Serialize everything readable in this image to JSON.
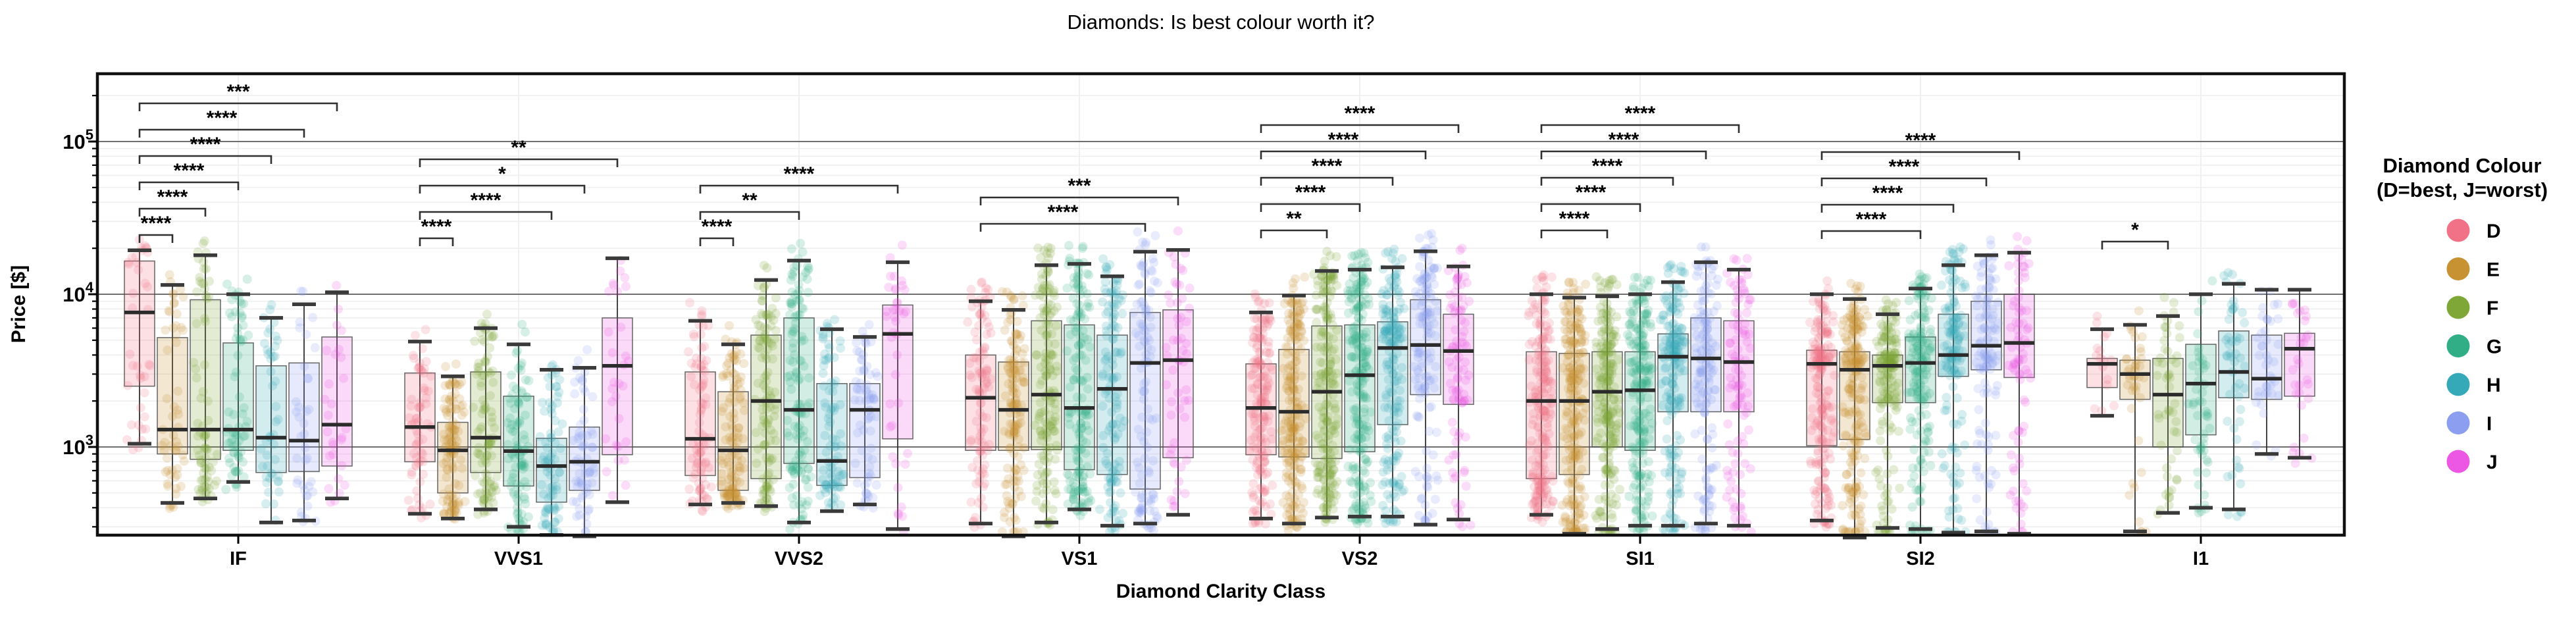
{
  "title": "Diamonds: Is best colour worth it?",
  "axes": {
    "x": {
      "label": "Diamond Clarity Class"
    },
    "y": {
      "label": "Price [$]",
      "scale": "log10",
      "tick_labels": [
        "10³",
        "10⁴",
        "10⁵"
      ],
      "tick_values": [
        1000,
        10000,
        100000
      ]
    }
  },
  "legend": {
    "title_line1": "Diamond Colour",
    "title_line2": "(D=best, J=worst)",
    "entries": [
      {
        "label": "D",
        "color": "#F17286"
      },
      {
        "label": "E",
        "color": "#C79232"
      },
      {
        "label": "F",
        "color": "#7FA737"
      },
      {
        "label": "G",
        "color": "#31AE86"
      },
      {
        "label": "H",
        "color": "#36A9B8"
      },
      {
        "label": "I",
        "color": "#8C9EF0"
      },
      {
        "label": "J",
        "color": "#EC57E3"
      }
    ]
  },
  "chart_data": {
    "type": "grouped_boxplot_with_jitter",
    "title": "Diamonds: Is best colour worth it?",
    "xlabel": "Diamond Clarity Class",
    "ylabel": "Price [$]",
    "yscale": "log10",
    "ylim": [
      260,
      330000
    ],
    "grid": true,
    "legend_position": "right",
    "categories": [
      "IF",
      "VVS1",
      "VVS2",
      "VS1",
      "VS2",
      "SI1",
      "SI2",
      "I1"
    ],
    "series": [
      "D",
      "E",
      "F",
      "G",
      "H",
      "I",
      "J"
    ],
    "colors": {
      "D": "#F17286",
      "E": "#C79232",
      "F": "#7FA737",
      "G": "#31AE86",
      "H": "#36A9B8",
      "I": "#8C9EF0",
      "J": "#EC57E3"
    },
    "box_format": "[whisker_low, q1, median, q3, whisker_high, n_points] in USD (values estimated from figure)",
    "boxes": {
      "IF": {
        "D": [
          1050,
          2500,
          7600,
          16500,
          19400,
          38
        ],
        "E": [
          430,
          900,
          1300,
          5200,
          11500,
          55
        ],
        "F": [
          460,
          830,
          1300,
          9200,
          18000,
          75
        ],
        "G": [
          590,
          950,
          1300,
          4800,
          10000,
          70
        ],
        "H": [
          320,
          680,
          1150,
          3400,
          7000,
          45
        ],
        "I": [
          330,
          690,
          1100,
          3550,
          8600,
          38
        ],
        "J": [
          460,
          750,
          1400,
          5250,
          10300,
          28
        ]
      },
      "VVS1": {
        "D": [
          365,
          800,
          1350,
          3050,
          4900,
          65
        ],
        "E": [
          340,
          500,
          950,
          1450,
          2900,
          120
        ],
        "F": [
          390,
          680,
          1150,
          3100,
          6000,
          100
        ],
        "G": [
          300,
          555,
          940,
          2150,
          4700,
          95
        ],
        "H": [
          265,
          435,
          750,
          1140,
          3200,
          80
        ],
        "I": [
          260,
          520,
          800,
          1350,
          3300,
          65
        ],
        "J": [
          435,
          890,
          3400,
          7000,
          17200,
          30
        ]
      },
      "VVS2": {
        "D": [
          420,
          650,
          1130,
          3100,
          6700,
          85
        ],
        "E": [
          430,
          520,
          950,
          2300,
          4700,
          130
        ],
        "F": [
          410,
          620,
          2000,
          5400,
          12400,
          120
        ],
        "G": [
          320,
          780,
          1750,
          7000,
          16600,
          130
        ],
        "H": [
          380,
          560,
          810,
          2600,
          5900,
          85
        ],
        "I": [
          420,
          630,
          1750,
          2600,
          5250,
          70
        ],
        "J": [
          290,
          1130,
          5500,
          8500,
          16200,
          40
        ]
      },
      "VS1": {
        "D": [
          315,
          950,
          2100,
          4000,
          9000,
          100
        ],
        "E": [
          260,
          950,
          1750,
          3600,
          7900,
          140
        ],
        "F": [
          320,
          960,
          2200,
          6700,
          15500,
          160
        ],
        "G": [
          390,
          710,
          1800,
          6300,
          15800,
          160
        ],
        "H": [
          305,
          660,
          2400,
          5400,
          13100,
          130
        ],
        "I": [
          315,
          530,
          3550,
          7600,
          19000,
          110
        ],
        "J": [
          360,
          850,
          3700,
          7900,
          19500,
          55
        ]
      },
      "VS2": {
        "D": [
          340,
          890,
          1800,
          3500,
          7600,
          170
        ],
        "E": [
          315,
          860,
          1700,
          4350,
          9800,
          220
        ],
        "F": [
          345,
          840,
          2300,
          6200,
          14200,
          220
        ],
        "G": [
          350,
          930,
          2950,
          6300,
          14500,
          220
        ],
        "H": [
          350,
          1400,
          4450,
          6600,
          15000,
          180
        ],
        "I": [
          310,
          2200,
          4650,
          9200,
          19100,
          140
        ],
        "J": [
          335,
          1900,
          4250,
          7400,
          15200,
          90
        ]
      },
      "SI1": {
        "D": [
          360,
          620,
          2000,
          4200,
          10000,
          220
        ],
        "E": [
          270,
          660,
          2000,
          4100,
          9500,
          240
        ],
        "F": [
          290,
          1000,
          2300,
          4200,
          9700,
          220
        ],
        "G": [
          305,
          950,
          2350,
          4200,
          10000,
          210
        ],
        "H": [
          305,
          1700,
          3900,
          5500,
          12000,
          190
        ],
        "I": [
          315,
          1700,
          3800,
          7000,
          16200,
          150
        ],
        "J": [
          305,
          1700,
          3600,
          6700,
          14500,
          100
        ]
      },
      "SI2": {
        "D": [
          330,
          1020,
          3500,
          4300,
          10000,
          200
        ],
        "E": [
          255,
          1120,
          3200,
          4200,
          9300,
          210
        ],
        "F": [
          295,
          1950,
          3400,
          4000,
          7400,
          180
        ],
        "G": [
          290,
          1950,
          3550,
          5250,
          10900,
          170
        ],
        "H": [
          275,
          2900,
          4000,
          7400,
          15500,
          150
        ],
        "I": [
          280,
          3200,
          4600,
          9000,
          18000,
          120
        ],
        "J": [
          270,
          2850,
          4800,
          10000,
          18700,
          80
        ]
      },
      "I1": {
        "D": [
          1600,
          2450,
          3500,
          3800,
          5900,
          16
        ],
        "E": [
          280,
          2050,
          3000,
          3700,
          6300,
          40
        ],
        "F": [
          370,
          1000,
          2200,
          3800,
          7200,
          50
        ],
        "G": [
          400,
          1200,
          2600,
          4700,
          10000,
          50
        ],
        "H": [
          390,
          2100,
          3100,
          5750,
          11700,
          50
        ],
        "I": [
          900,
          2050,
          2800,
          5400,
          10700,
          40
        ],
        "J": [
          850,
          2150,
          4400,
          5550,
          10700,
          30
        ]
      }
    },
    "significance_note": "pairwise comparisons vs colour D within each clarity class",
    "significance": [
      {
        "group": "IF",
        "from": "D",
        "to": "E",
        "label": "****"
      },
      {
        "group": "IF",
        "from": "D",
        "to": "F",
        "label": "****"
      },
      {
        "group": "IF",
        "from": "D",
        "to": "G",
        "label": "****"
      },
      {
        "group": "IF",
        "from": "D",
        "to": "H",
        "label": "****"
      },
      {
        "group": "IF",
        "from": "D",
        "to": "I",
        "label": "****"
      },
      {
        "group": "IF",
        "from": "D",
        "to": "J",
        "label": "***"
      },
      {
        "group": "VVS1",
        "from": "D",
        "to": "E",
        "label": "****"
      },
      {
        "group": "VVS1",
        "from": "D",
        "to": "H",
        "label": "****"
      },
      {
        "group": "VVS1",
        "from": "D",
        "to": "I",
        "label": "*"
      },
      {
        "group": "VVS1",
        "from": "D",
        "to": "J",
        "label": "**"
      },
      {
        "group": "VVS2",
        "from": "D",
        "to": "E",
        "label": "****"
      },
      {
        "group": "VVS2",
        "from": "D",
        "to": "G",
        "label": "**"
      },
      {
        "group": "VVS2",
        "from": "D",
        "to": "J",
        "label": "****"
      },
      {
        "group": "VS1",
        "from": "D",
        "to": "I",
        "label": "****"
      },
      {
        "group": "VS1",
        "from": "D",
        "to": "J",
        "label": "***"
      },
      {
        "group": "VS2",
        "from": "D",
        "to": "F",
        "label": "**"
      },
      {
        "group": "VS2",
        "from": "D",
        "to": "G",
        "label": "****"
      },
      {
        "group": "VS2",
        "from": "D",
        "to": "H",
        "label": "****"
      },
      {
        "group": "VS2",
        "from": "D",
        "to": "I",
        "label": "****"
      },
      {
        "group": "VS2",
        "from": "D",
        "to": "J",
        "label": "****"
      },
      {
        "group": "SI1",
        "from": "D",
        "to": "F",
        "label": "****"
      },
      {
        "group": "SI1",
        "from": "D",
        "to": "G",
        "label": "****"
      },
      {
        "group": "SI1",
        "from": "D",
        "to": "H",
        "label": "****"
      },
      {
        "group": "SI1",
        "from": "D",
        "to": "I",
        "label": "****"
      },
      {
        "group": "SI1",
        "from": "D",
        "to": "J",
        "label": "****"
      },
      {
        "group": "SI2",
        "from": "D",
        "to": "G",
        "label": "****"
      },
      {
        "group": "SI2",
        "from": "D",
        "to": "H",
        "label": "****"
      },
      {
        "group": "SI2",
        "from": "D",
        "to": "I",
        "label": "****"
      },
      {
        "group": "SI2",
        "from": "D",
        "to": "J",
        "label": "****"
      },
      {
        "group": "I1",
        "from": "D",
        "to": "F",
        "label": "*"
      }
    ]
  }
}
